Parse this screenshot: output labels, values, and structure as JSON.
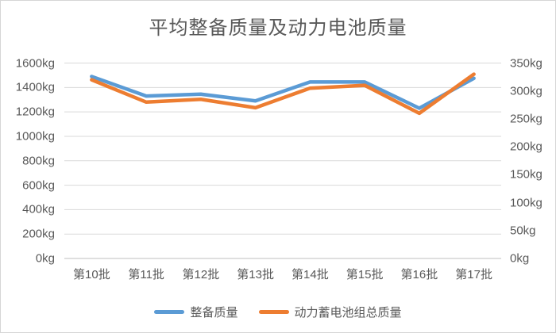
{
  "chart_data": {
    "type": "line",
    "title": "平均整备质量及动力电池质量",
    "categories": [
      "第10批",
      "第11批",
      "第12批",
      "第13批",
      "第14批",
      "第15批",
      "第16批",
      "第17批"
    ],
    "series": [
      {
        "name": "整备质量",
        "axis": "left",
        "color": "#5B9BD5",
        "values": [
          1490,
          1330,
          1345,
          1290,
          1445,
          1445,
          1230,
          1475
        ]
      },
      {
        "name": "动力蓄电池组总质量",
        "axis": "right",
        "color": "#ED7D31",
        "values": [
          320,
          280,
          285,
          270,
          305,
          310,
          260,
          330
        ]
      }
    ],
    "left_axis": {
      "min": 0,
      "max": 1600,
      "step": 200,
      "unit": "kg",
      "labels": [
        "1600kg",
        "1400kg",
        "1200kg",
        "1000kg",
        "800kg",
        "600kg",
        "400kg",
        "200kg",
        "0kg"
      ]
    },
    "right_axis": {
      "min": 0,
      "max": 350,
      "step": 50,
      "unit": "kg",
      "labels": [
        "350kg",
        "300kg",
        "250kg",
        "200kg",
        "150kg",
        "100kg",
        "50kg",
        "0kg"
      ]
    },
    "grid": true,
    "legend_position": "bottom",
    "colors": {
      "text": "#595959",
      "gridline": "#d9d9d9",
      "axis_line": "#bfbfbf",
      "border": "#d6d6d6"
    }
  }
}
